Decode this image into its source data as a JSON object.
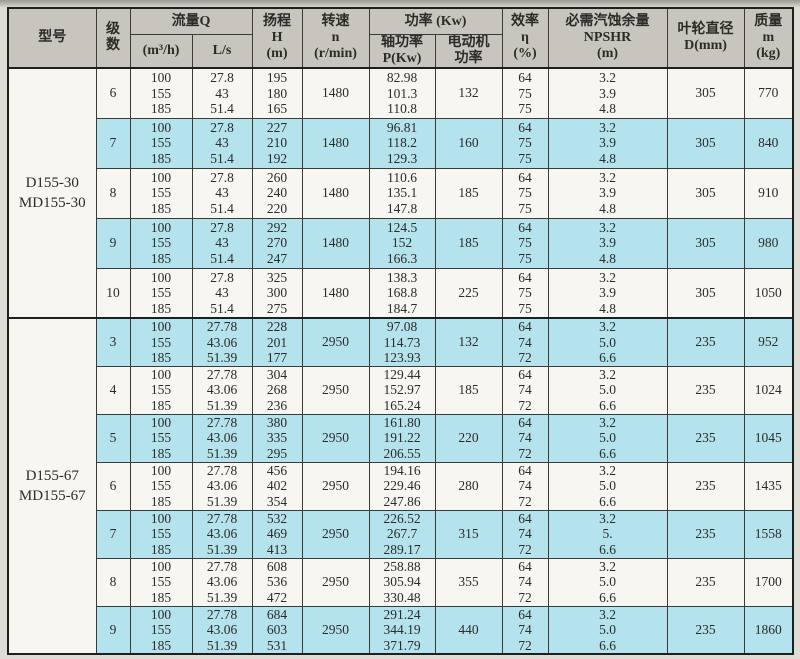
{
  "colors": {
    "highlight_row": "#b4e3ee",
    "header_bg": "#c7c5be",
    "row_bg": "#f7f6f1",
    "page_bg": "#dedcd5"
  },
  "header": {
    "model": "型号",
    "stages": [
      "级",
      "数"
    ],
    "flow": "流量Q",
    "flow_m3h": "(m³/h)",
    "flow_ls": "L/s",
    "head": [
      "扬程",
      "H",
      "(m)"
    ],
    "speed": [
      "转速",
      "n",
      "(r/min)"
    ],
    "power": "功率 (Kw)",
    "shaft_power": [
      "轴功率",
      "P(Kw)"
    ],
    "motor_power": [
      "电动机",
      "功率"
    ],
    "efficiency": [
      "效率",
      "η",
      "(%)"
    ],
    "npshr": [
      "必需汽蚀余量",
      "NPSHR",
      "(m)"
    ],
    "impeller": [
      "叶轮直径",
      "D(mm)"
    ],
    "mass": [
      "质量",
      "m",
      "(kg)"
    ]
  },
  "groups": [
    {
      "model": [
        "D155-30",
        "MD155-30"
      ],
      "rows": [
        {
          "highlight": false,
          "stages": "6",
          "flow_m3h": [
            "100",
            "155",
            "185"
          ],
          "flow_ls": [
            "27.8",
            "43",
            "51.4"
          ],
          "head": [
            "195",
            "180",
            "165"
          ],
          "speed": "1480",
          "shaft_power": [
            "82.98",
            "101.3",
            "110.8"
          ],
          "motor_power": "132",
          "efficiency": [
            "64",
            "75",
            "75"
          ],
          "npshr": [
            "3.2",
            "3.9",
            "4.8"
          ],
          "impeller": "305",
          "mass": "770"
        },
        {
          "highlight": true,
          "stages": "7",
          "flow_m3h": [
            "100",
            "155",
            "185"
          ],
          "flow_ls": [
            "27.8",
            "43",
            "51.4"
          ],
          "head": [
            "227",
            "210",
            "192"
          ],
          "speed": "1480",
          "shaft_power": [
            "96.81",
            "118.2",
            "129.3"
          ],
          "motor_power": "160",
          "efficiency": [
            "64",
            "75",
            "75"
          ],
          "npshr": [
            "3.2",
            "3.9",
            "4.8"
          ],
          "impeller": "305",
          "mass": "840"
        },
        {
          "highlight": false,
          "stages": "8",
          "flow_m3h": [
            "100",
            "155",
            "185"
          ],
          "flow_ls": [
            "27.8",
            "43",
            "51.4"
          ],
          "head": [
            "260",
            "240",
            "220"
          ],
          "speed": "1480",
          "shaft_power": [
            "110.6",
            "135.1",
            "147.8"
          ],
          "motor_power": "185",
          "efficiency": [
            "64",
            "75",
            "75"
          ],
          "npshr": [
            "3.2",
            "3.9",
            "4.8"
          ],
          "impeller": "305",
          "mass": "910"
        },
        {
          "highlight": true,
          "stages": "9",
          "flow_m3h": [
            "100",
            "155",
            "185"
          ],
          "flow_ls": [
            "27.8",
            "43",
            "51.4"
          ],
          "head": [
            "292",
            "270",
            "247"
          ],
          "speed": "1480",
          "shaft_power": [
            "124.5",
            "152",
            "166.3"
          ],
          "motor_power": "185",
          "efficiency": [
            "64",
            "75",
            "75"
          ],
          "npshr": [
            "3.2",
            "3.9",
            "4.8"
          ],
          "impeller": "305",
          "mass": "980"
        },
        {
          "highlight": false,
          "stages": "10",
          "flow_m3h": [
            "100",
            "155",
            "185"
          ],
          "flow_ls": [
            "27.8",
            "43",
            "51.4"
          ],
          "head": [
            "325",
            "300",
            "275"
          ],
          "speed": "1480",
          "shaft_power": [
            "138.3",
            "168.8",
            "184.7"
          ],
          "motor_power": "225",
          "efficiency": [
            "64",
            "75",
            "75"
          ],
          "npshr": [
            "3.2",
            "3.9",
            "4.8"
          ],
          "impeller": "305",
          "mass": "1050"
        }
      ]
    },
    {
      "model": [
        "D155-67",
        "MD155-67"
      ],
      "rows": [
        {
          "highlight": true,
          "stages": "3",
          "flow_m3h": [
            "100",
            "155",
            "185"
          ],
          "flow_ls": [
            "27.78",
            "43.06",
            "51.39"
          ],
          "head": [
            "228",
            "201",
            "177"
          ],
          "speed": "2950",
          "shaft_power": [
            "97.08",
            "114.73",
            "123.93"
          ],
          "motor_power": "132",
          "efficiency": [
            "64",
            "74",
            "72"
          ],
          "npshr": [
            "3.2",
            "5.0",
            "6.6"
          ],
          "impeller": "235",
          "mass": "952"
        },
        {
          "highlight": false,
          "stages": "4",
          "flow_m3h": [
            "100",
            "155",
            "185"
          ],
          "flow_ls": [
            "27.78",
            "43.06",
            "51.39"
          ],
          "head": [
            "304",
            "268",
            "236"
          ],
          "speed": "2950",
          "shaft_power": [
            "129.44",
            "152.97",
            "165.24"
          ],
          "motor_power": "185",
          "efficiency": [
            "64",
            "74",
            "72"
          ],
          "npshr": [
            "3.2",
            "5.0",
            "6.6"
          ],
          "impeller": "235",
          "mass": "1024"
        },
        {
          "highlight": true,
          "stages": "5",
          "flow_m3h": [
            "100",
            "155",
            "185"
          ],
          "flow_ls": [
            "27.78",
            "43.06",
            "51.39"
          ],
          "head": [
            "380",
            "335",
            "295"
          ],
          "speed": "2950",
          "shaft_power": [
            "161.80",
            "191.22",
            "206.55"
          ],
          "motor_power": "220",
          "efficiency": [
            "64",
            "74",
            "72"
          ],
          "npshr": [
            "3.2",
            "5.0",
            "6.6"
          ],
          "impeller": "235",
          "mass": "1045"
        },
        {
          "highlight": false,
          "stages": "6",
          "flow_m3h": [
            "100",
            "155",
            "185"
          ],
          "flow_ls": [
            "27.78",
            "43.06",
            "51.39"
          ],
          "head": [
            "456",
            "402",
            "354"
          ],
          "speed": "2950",
          "shaft_power": [
            "194.16",
            "229.46",
            "247.86"
          ],
          "motor_power": "280",
          "efficiency": [
            "64",
            "74",
            "72"
          ],
          "npshr": [
            "3.2",
            "5.0",
            "6.6"
          ],
          "impeller": "235",
          "mass": "1435"
        },
        {
          "highlight": true,
          "stages": "7",
          "flow_m3h": [
            "100",
            "155",
            "185"
          ],
          "flow_ls": [
            "27.78",
            "43.06",
            "51.39"
          ],
          "head": [
            "532",
            "469",
            "413"
          ],
          "speed": "2950",
          "shaft_power": [
            "226.52",
            "267.7",
            "289.17"
          ],
          "motor_power": "315",
          "efficiency": [
            "64",
            "74",
            "72"
          ],
          "npshr": [
            "3.2",
            "5.",
            "6.6"
          ],
          "impeller": "235",
          "mass": "1558"
        },
        {
          "highlight": false,
          "stages": "8",
          "flow_m3h": [
            "100",
            "155",
            "185"
          ],
          "flow_ls": [
            "27.78",
            "43.06",
            "51.39"
          ],
          "head": [
            "608",
            "536",
            "472"
          ],
          "speed": "2950",
          "shaft_power": [
            "258.88",
            "305.94",
            "330.48"
          ],
          "motor_power": "355",
          "efficiency": [
            "64",
            "74",
            "72"
          ],
          "npshr": [
            "3.2",
            "5.0",
            "6.6"
          ],
          "impeller": "235",
          "mass": "1700"
        },
        {
          "highlight": true,
          "stages": "9",
          "flow_m3h": [
            "100",
            "155",
            "185"
          ],
          "flow_ls": [
            "27.78",
            "43.06",
            "51.39"
          ],
          "head": [
            "684",
            "603",
            "531"
          ],
          "speed": "2950",
          "shaft_power": [
            "291.24",
            "344.19",
            "371.79"
          ],
          "motor_power": "440",
          "efficiency": [
            "64",
            "74",
            "72"
          ],
          "npshr": [
            "3.2",
            "5.0",
            "6.6"
          ],
          "impeller": "235",
          "mass": "1860"
        }
      ]
    }
  ]
}
